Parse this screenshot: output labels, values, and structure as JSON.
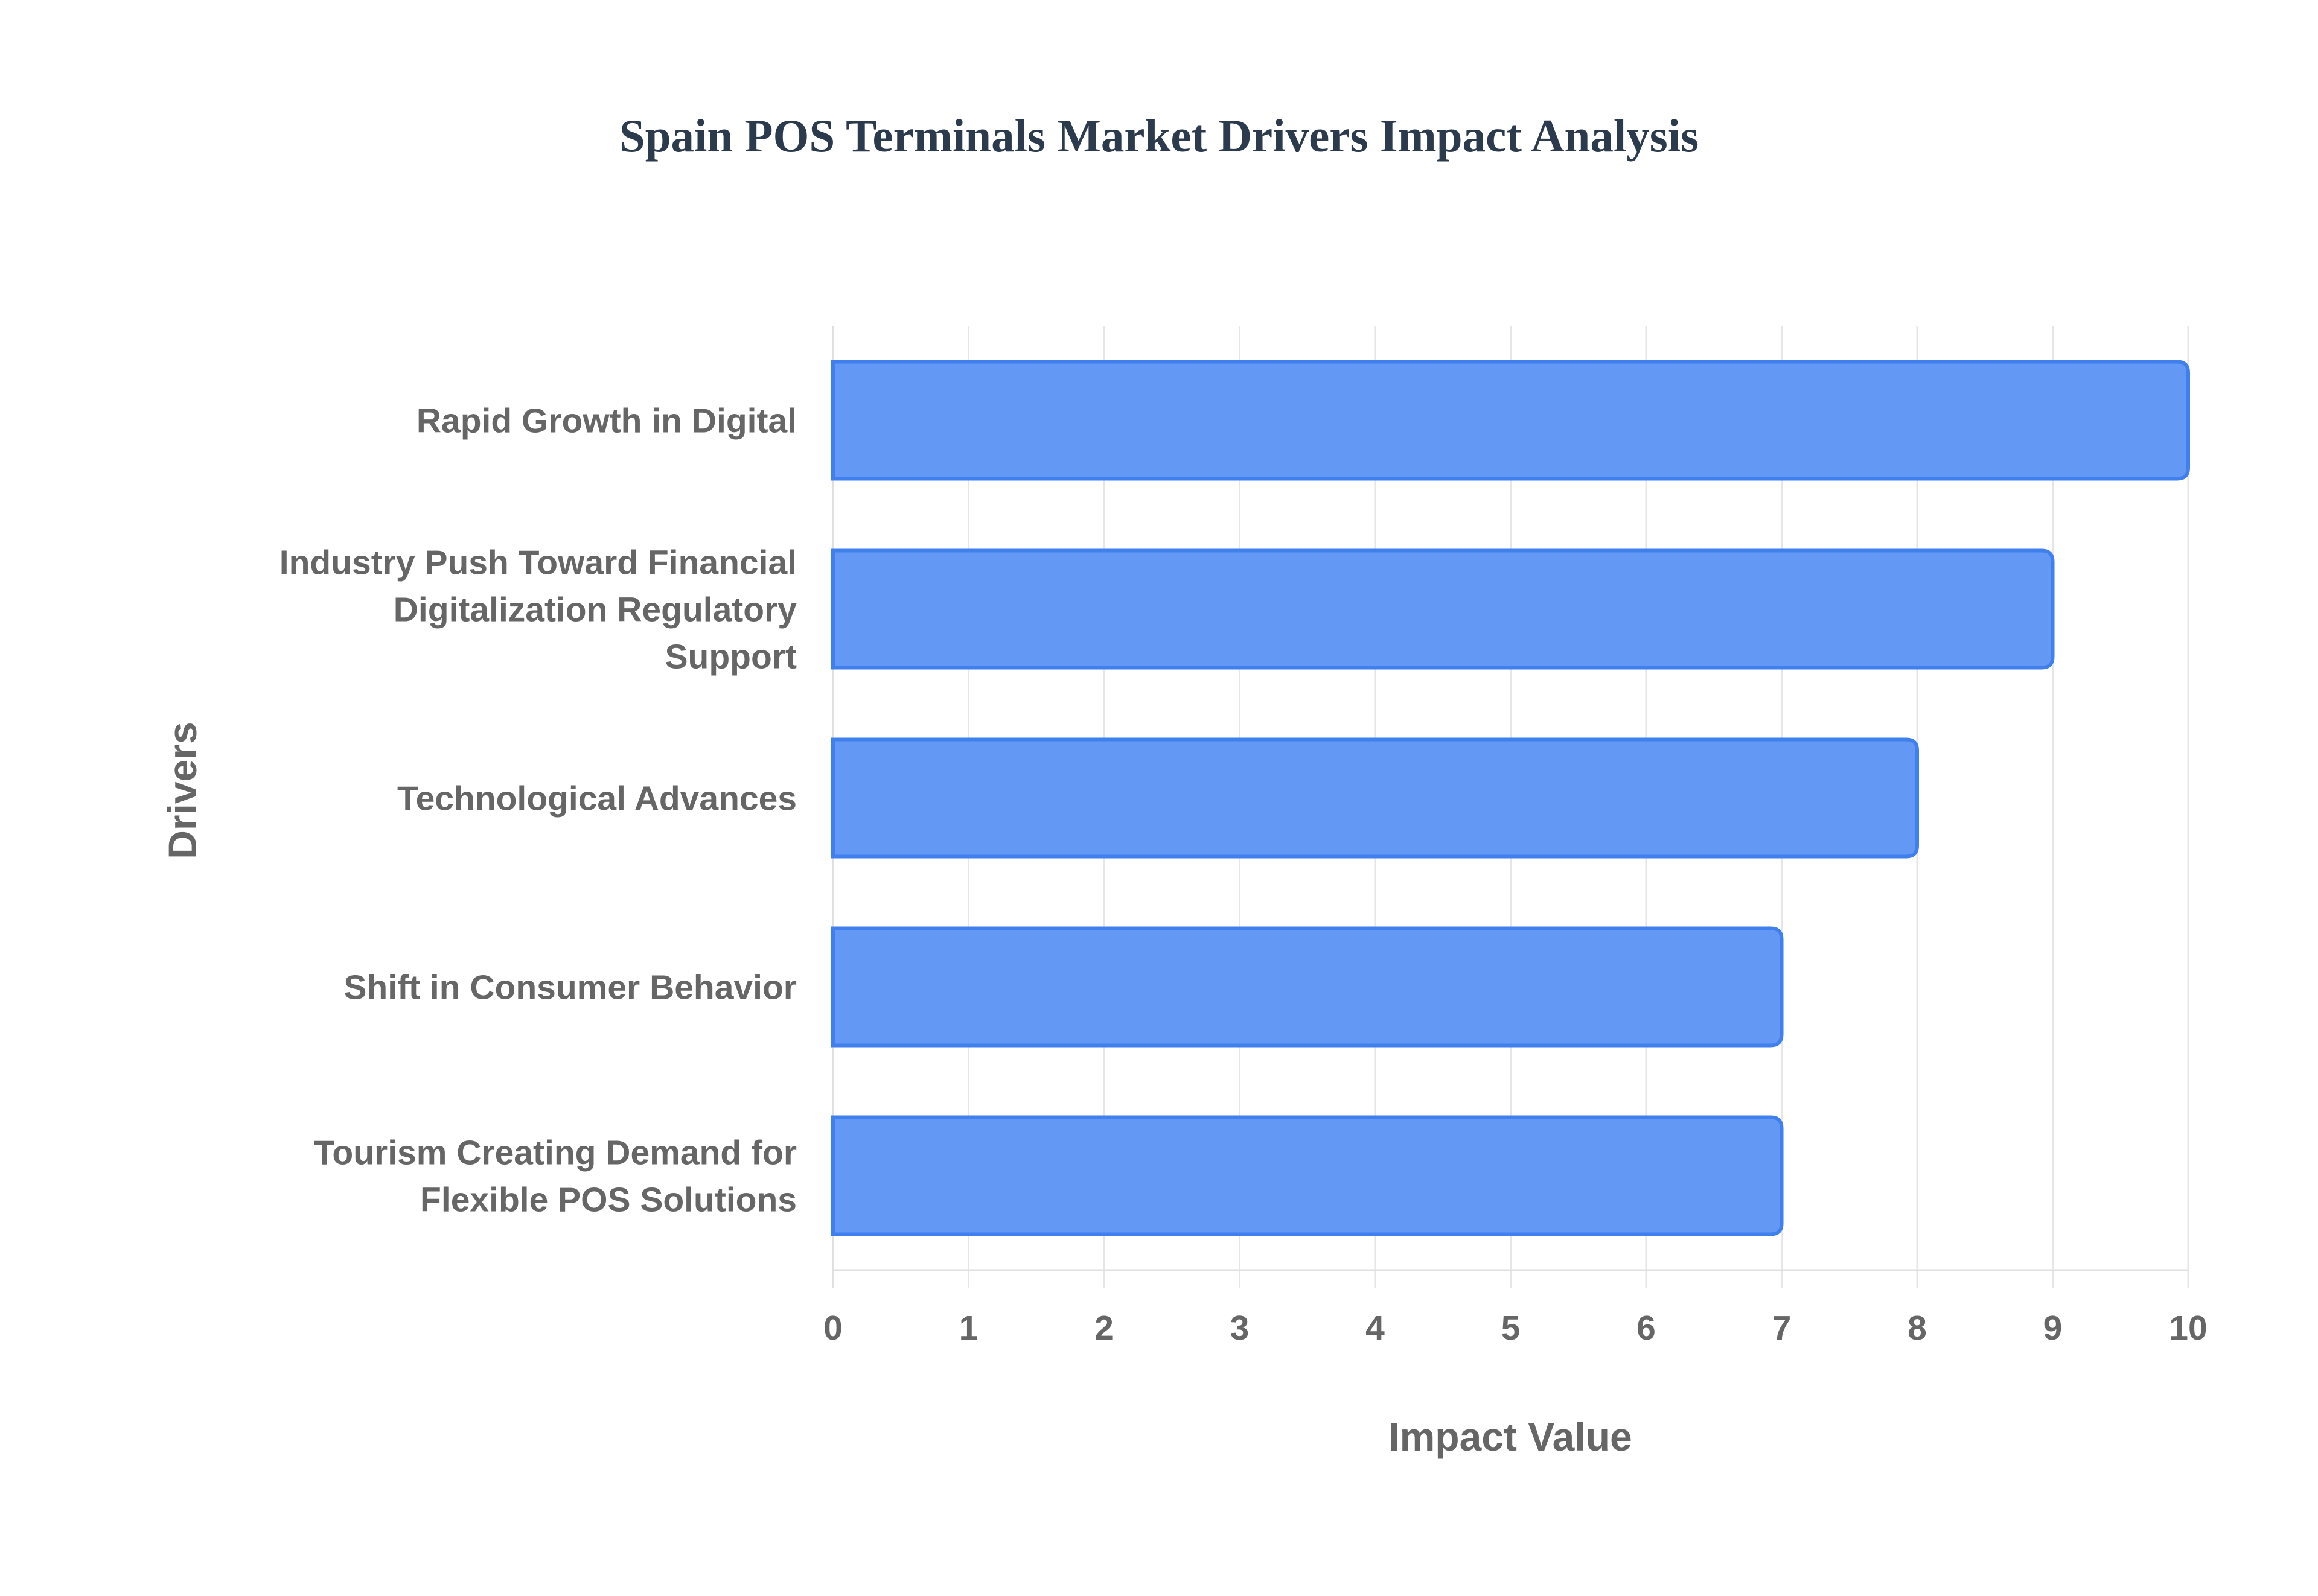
{
  "chart_data": {
    "type": "bar",
    "orientation": "horizontal",
    "title": "Spain POS Terminals Market Drivers Impact Analysis",
    "xlabel": "Impact Value",
    "ylabel": "Drivers",
    "xlim": [
      0,
      10
    ],
    "x_ticks": [
      "0",
      "1",
      "2",
      "3",
      "4",
      "5",
      "6",
      "7",
      "8",
      "9",
      "10"
    ],
    "categories": [
      [
        "Rapid Growth in Digital"
      ],
      [
        "Industry Push Toward Financial",
        "Digitalization Regulatory",
        "Support"
      ],
      [
        "Technological Advances"
      ],
      [
        "Shift in Consumer Behavior"
      ],
      [
        "Tourism Creating Demand for",
        "Flexible POS Solutions"
      ]
    ],
    "values": [
      10,
      9,
      8,
      7,
      7
    ],
    "grid": true,
    "legend": "none",
    "colors": {
      "bar_fill": "#6399f5",
      "bar_stroke": "#3f7fee",
      "title": "#2b3a4c",
      "text": "#666666"
    }
  }
}
